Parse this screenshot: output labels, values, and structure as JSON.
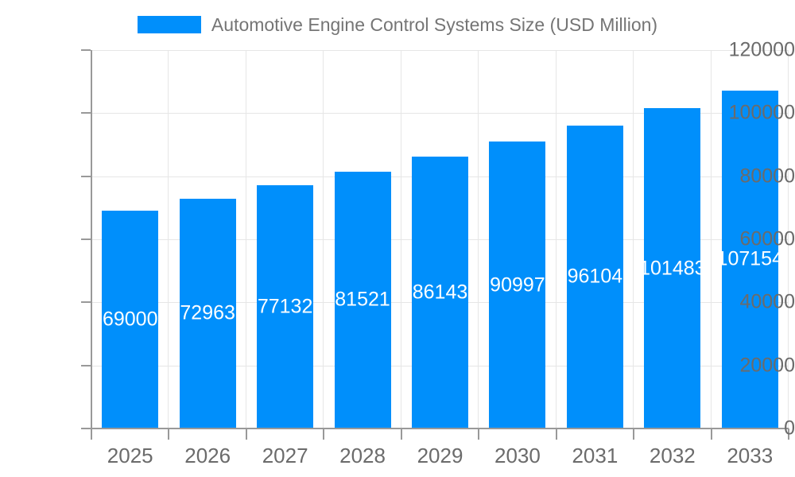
{
  "legend": {
    "label": "Automotive Engine Control Systems Size (USD Million)"
  },
  "colors": {
    "bar": "#008FFB",
    "bar_label_text": "#ffffff",
    "grid": "#e6e6e6",
    "axis": "#999999",
    "axis_text": "#6b6b6b",
    "legend_text": "#757575",
    "background": "#ffffff"
  },
  "chart_data": {
    "type": "bar",
    "title": "Automotive Engine Control Systems Size (USD Million)",
    "categories": [
      "2025",
      "2026",
      "2027",
      "2028",
      "2029",
      "2030",
      "2031",
      "2032",
      "2033"
    ],
    "values": [
      69000,
      72963,
      77132,
      81521,
      86143,
      90997,
      96104,
      101483,
      107154
    ],
    "series": [
      {
        "name": "Automotive Engine Control Systems Size (USD Million)",
        "values": [
          69000,
          72963,
          77132,
          81521,
          86143,
          90997,
          96104,
          101483,
          107154
        ]
      }
    ],
    "xlabel": "",
    "ylabel": "",
    "ylim": [
      0,
      120000
    ],
    "yticks": [
      0,
      20000,
      40000,
      60000,
      80000,
      100000,
      120000
    ],
    "grid": true,
    "legend_position": "top",
    "bar_value_labels": "centered-inside-bars"
  }
}
